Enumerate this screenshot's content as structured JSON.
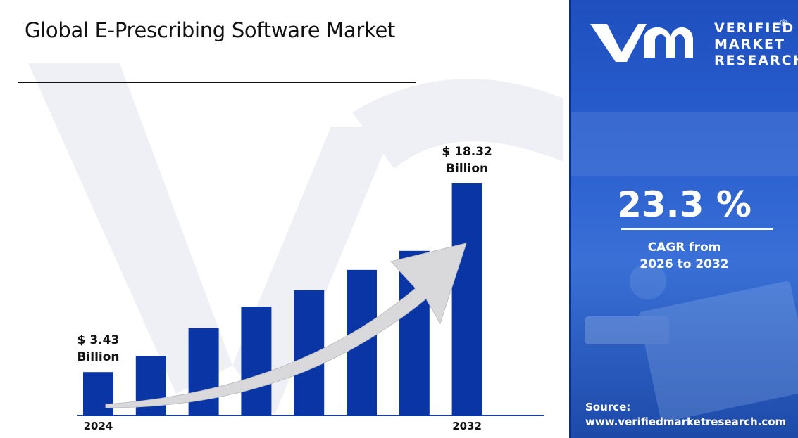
{
  "title": "Global E-Prescribing Software Market",
  "brand": {
    "line1": "VERIFIED",
    "line2": "MARKET",
    "line3": "RESEARCH",
    "registered": "®"
  },
  "cagr": {
    "value": "23.3 %",
    "label_line1": "CAGR from",
    "label_line2": "2026 to 2032"
  },
  "source": {
    "label": "Source:",
    "url": "www.verifiedmarketresearch.com"
  },
  "colors": {
    "bar": "#0a35a5",
    "panel": "#2458c4",
    "arrow": "#d9d9dc",
    "watermark": "#eceef5"
  },
  "chart_data": {
    "type": "bar",
    "title": "Global E-Prescribing Software Market",
    "categories": [
      "2024",
      "",
      "",
      "",
      "",
      "",
      "",
      "2032"
    ],
    "values": [
      3.43,
      4.7,
      6.9,
      8.6,
      9.9,
      11.5,
      13.0,
      18.32
    ],
    "ylim": [
      0,
      20
    ],
    "xlabel": "",
    "ylabel": "",
    "grid": false,
    "annotations": [
      {
        "index": 0,
        "line1": "$ 3.43",
        "line2": "Billion"
      },
      {
        "index": 7,
        "line1": "$ 18.32",
        "line2": "Billion"
      }
    ]
  }
}
